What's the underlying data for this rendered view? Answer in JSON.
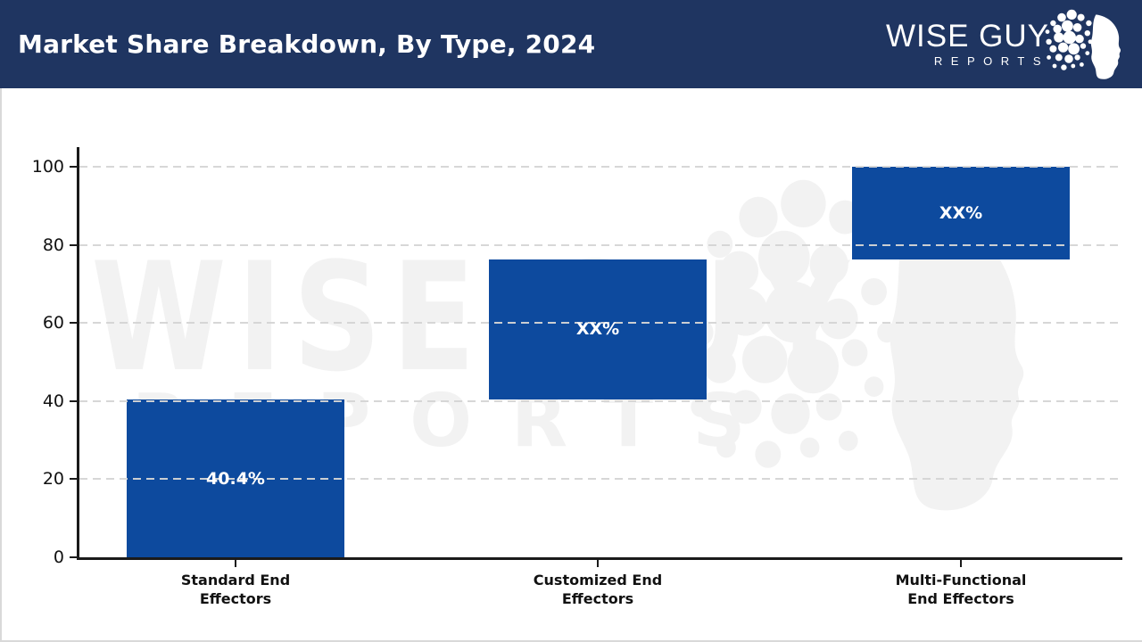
{
  "header": {
    "title": "Market Share Breakdown, By Type, 2024",
    "background_color": "#1f3561",
    "logo": {
      "name": "WISE GUY",
      "subname": "REPORTS"
    }
  },
  "watermark": {
    "big_text": "WISE GUY",
    "small_text": "REPORTS"
  },
  "chart_data": {
    "type": "bar",
    "variant": "floating-segment-bars",
    "title": "Market Share Breakdown, By Type, 2024",
    "categories": [
      {
        "label": "Standard End Effectors",
        "lines": [
          "Standard End",
          "Effectors"
        ]
      },
      {
        "label": "Customized End Effectors",
        "lines": [
          "Customized End",
          "Effectors"
        ]
      },
      {
        "label": "Multi-Functional End Effectors",
        "lines": [
          "Multi-Functional",
          "End Effectors"
        ]
      }
    ],
    "bars": [
      {
        "from": 0,
        "to": 40.4,
        "label": "40.4%"
      },
      {
        "from": 40.4,
        "to": 76.3,
        "label": "XX%"
      },
      {
        "from": 76.3,
        "to": 100,
        "label": "XX%"
      }
    ],
    "ylim": [
      0,
      100
    ],
    "yticks": [
      0,
      20,
      40,
      60,
      80,
      100
    ],
    "xlabel": "",
    "ylabel": "",
    "legend": "none",
    "grid": {
      "axis": "y",
      "style": "dashed"
    },
    "colors": {
      "bar": "#0d4a9e",
      "bar_label": "#ffffff",
      "grid_line": "#d5d5d5",
      "axis_line": "#1a1a1a",
      "tick_label": "#111111",
      "watermark": "#f2f2f2",
      "header_bg": "#1f3561"
    }
  }
}
